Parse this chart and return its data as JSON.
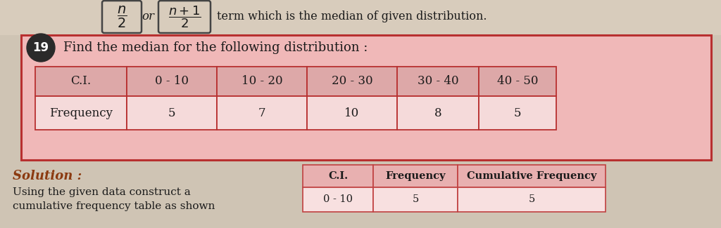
{
  "top_text": "term which is the median of given distribution.",
  "question_number": "19",
  "question_text": "Find the median for the following distribution :",
  "main_table": {
    "headers": [
      "C.I.",
      "0 - 10",
      "10 - 20",
      "20 - 30",
      "30 - 40",
      "40 - 50"
    ],
    "row_label": "Frequency",
    "values": [
      "5",
      "7",
      "10",
      "8",
      "5"
    ]
  },
  "solution_label": "Solution :",
  "solution_table": {
    "headers": [
      "C.I.",
      "Frequency",
      "Cumulative Frequency"
    ],
    "row": [
      "0 - 10",
      "5",
      "5"
    ]
  },
  "solution_text_line1": "Using the given data construct a",
  "solution_text_line2": "cumulative frequency table as shown",
  "bg_color_page": "#cfc4b4",
  "bg_color_outer": "#f0b8b8",
  "bg_color_table_header": "#dda8a8",
  "bg_color_table_data": "#f5dada",
  "bg_color_sol_table_header": "#e8b0b0",
  "bg_color_sol_table_data": "#f8e0e0",
  "text_color_main": "#1a1a1a",
  "text_color_solution": "#8B3A10",
  "circle_fill": "#1a1a1a",
  "border_color_main": "#b83030",
  "border_color_sol": "#c04040"
}
